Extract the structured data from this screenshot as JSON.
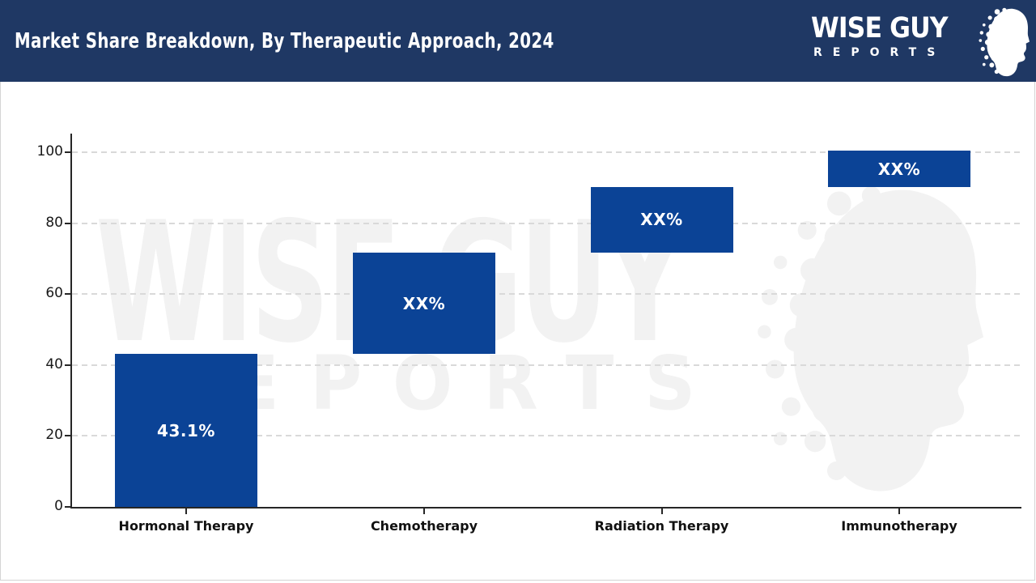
{
  "header": {
    "title": "Market Share Breakdown, By Therapeutic Approach, 2024",
    "bg_color": "#1f3864",
    "logo": {
      "line1": "WISE GUY",
      "line2": "REPORTS"
    }
  },
  "watermark": {
    "line1": "WISE GUY",
    "line2": "REPORTS",
    "color": "#f2f2f2"
  },
  "chart_data": {
    "type": "bar",
    "subtype": "waterfall",
    "title": "Market Share Breakdown, By Therapeutic Approach, 2024",
    "categories": [
      "Hormonal Therapy",
      "Chemotherapy",
      "Radiation Therapy",
      "Immunotherapy"
    ],
    "segments": [
      {
        "category": "Hormonal Therapy",
        "start": 0,
        "end": 43.1,
        "label": "43.1%"
      },
      {
        "category": "Chemotherapy",
        "start": 43.1,
        "end": 71.7,
        "label": "XX%"
      },
      {
        "category": "Radiation Therapy",
        "start": 71.7,
        "end": 90.2,
        "label": "XX%"
      },
      {
        "category": "Immunotherapy",
        "start": 90.2,
        "end": 100.4,
        "label": "XX%"
      }
    ],
    "y_ticks": [
      0,
      20,
      40,
      60,
      80,
      100
    ],
    "ylim": [
      0,
      105
    ],
    "xlabel": "",
    "ylabel": "",
    "grid": "horizontal-dashed",
    "grid_color": "#d9d9d9",
    "bar_color": "#0b4396",
    "bar_label_color": "#ffffff",
    "legend": "none"
  }
}
